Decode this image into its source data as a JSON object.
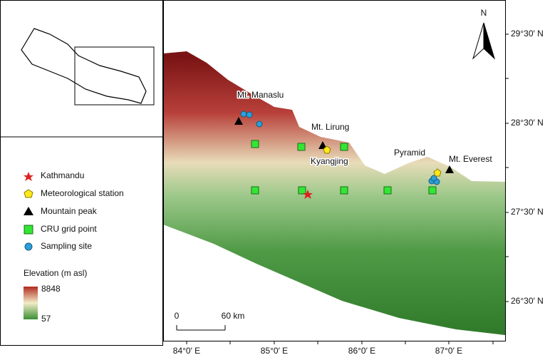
{
  "north_label": "N",
  "lat_labels": [
    "29°30′ N",
    "28°30′ N",
    "27°30′ N",
    "26°30′ N"
  ],
  "lon_labels": [
    "84°0′ E",
    "85°0′ E",
    "86°0′ E",
    "87°0′ E"
  ],
  "places": [
    "Mt. Manaslu",
    "Mt. Lirung",
    "Kyangjing",
    "Pyramid",
    "Mt. Everest"
  ],
  "legend": {
    "items": [
      "Kathmandu",
      "Meteorological station",
      "Mountain peak",
      "CRU grid point",
      "Sampling site"
    ],
    "elevation_title": "Elevation (m asl)",
    "elevation_max": "8848",
    "elevation_min": "57"
  },
  "scale_bar": {
    "start": "0",
    "end": "60 km"
  }
}
